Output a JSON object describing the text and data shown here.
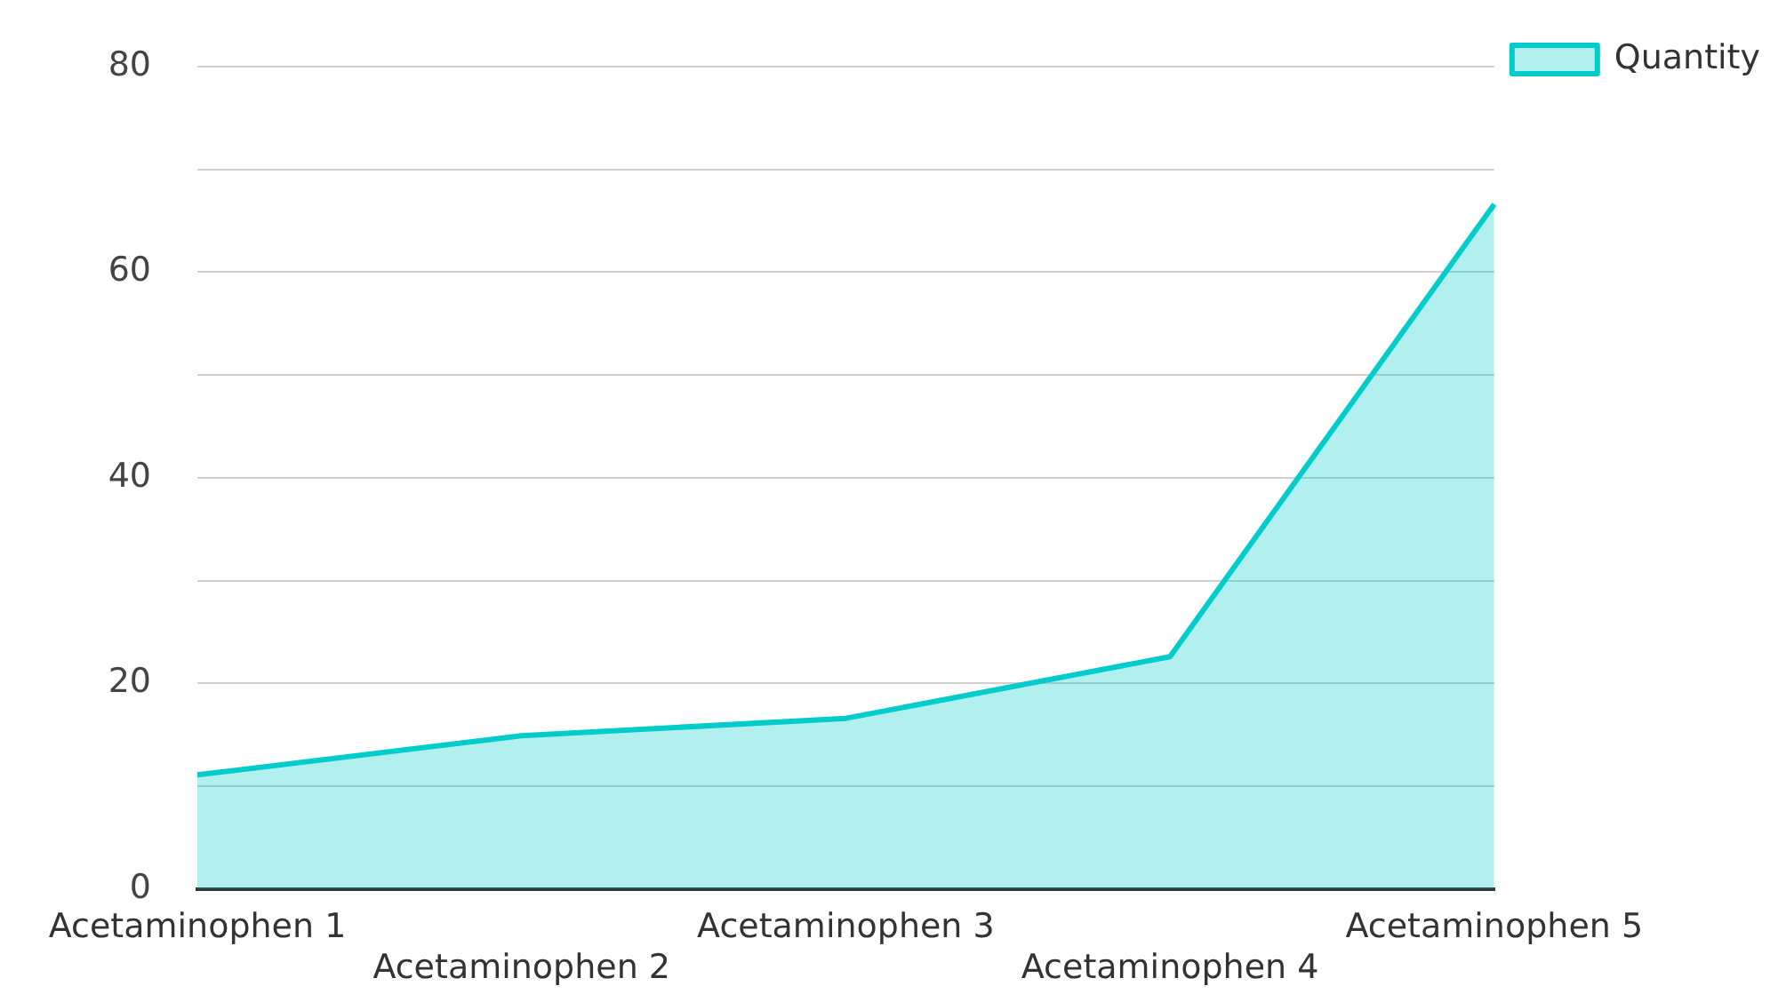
{
  "chart_data": {
    "type": "area",
    "categories": [
      "Acetaminophen 1",
      "Acetaminophen 2",
      "Acetaminophen 3",
      "Acetaminophen 4",
      "Acetaminophen 5"
    ],
    "series": [
      {
        "name": "Quantity",
        "color": "#00cccc",
        "values": [
          11.1,
          14.9,
          16.6,
          22.6,
          66.6
        ]
      }
    ],
    "ylim": [
      0,
      80
    ],
    "yticks": [
      0,
      {
        "value": 10,
        "label": null
      },
      20,
      {
        "value": 30,
        "label": null
      },
      40,
      {
        "value": 50,
        "label": null
      },
      60,
      {
        "value": 70,
        "label": null
      },
      80
    ],
    "grid": "y",
    "legend": "top right"
  }
}
